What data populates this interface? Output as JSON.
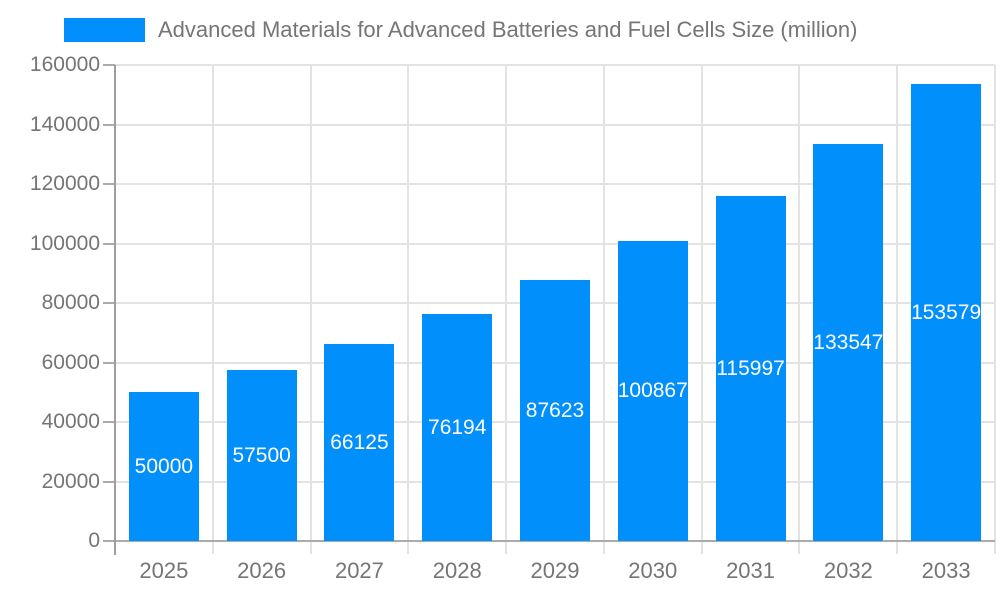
{
  "legend": {
    "label": "Advanced Materials for Advanced Batteries and Fuel Cells Size (million)"
  },
  "colors": {
    "bar": "#008FFB",
    "bar_label": "#FFFFFF",
    "grid": "#E3E3E3",
    "axis": "#ABABAB",
    "y_axis_line": "#9E9E9E",
    "tick_label": "#757575",
    "legend_text": "#757575",
    "background": "#FFFFFF"
  },
  "chart_data": {
    "type": "bar",
    "title": "Advanced Materials for Advanced Batteries and Fuel Cells Size (million)",
    "series_name": "Advanced Materials for Advanced Batteries and Fuel Cells Size (million)",
    "categories": [
      "2025",
      "2026",
      "2027",
      "2028",
      "2029",
      "2030",
      "2031",
      "2032",
      "2033"
    ],
    "values": [
      50000,
      57500,
      66125,
      76194,
      87623,
      100867,
      115997,
      133547,
      153579
    ],
    "value_labels": [
      "50000",
      "57500",
      "66125",
      "76194",
      "87623",
      "100867",
      "115997",
      "133547",
      "153579"
    ],
    "xlabel": "",
    "ylabel": "",
    "ylim": [
      0,
      160000
    ],
    "ytick_step": 20000,
    "ytick_labels": [
      "0",
      "20000",
      "40000",
      "60000",
      "80000",
      "100000",
      "120000",
      "140000",
      "160000"
    ],
    "grid": true,
    "legend_position": "top-left",
    "value_label_position": "inside-center",
    "bar_color": "#008FFB"
  }
}
